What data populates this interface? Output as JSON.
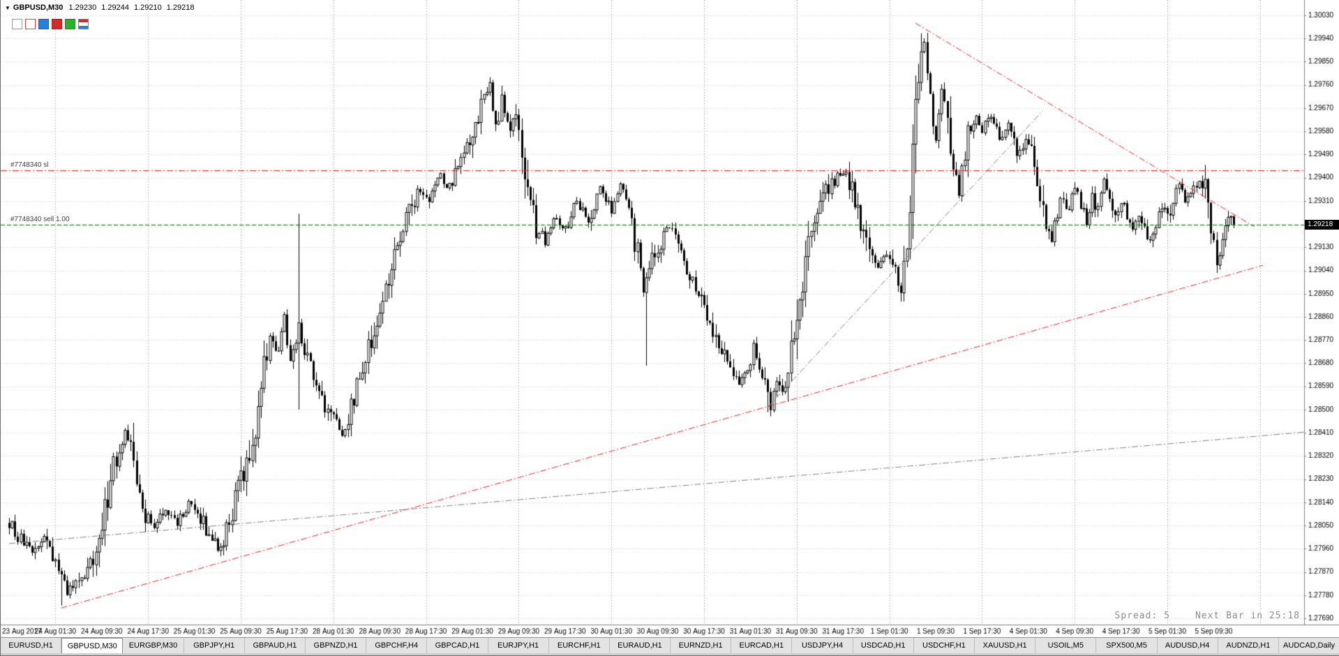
{
  "colors": {
    "background": "#ffffff",
    "candle": "#000000",
    "grid_h": "#d6d6d6",
    "grid_v": "#8f8f8f",
    "axis_divider": "#808080",
    "red_line": "#ff2020",
    "green_line": "#007a00",
    "gray_line": "#808080",
    "badge_bg": "#000000",
    "badge_text": "#ffffff",
    "overlay_text": "#8c8c8c"
  },
  "header": {
    "collapse_icon": "▼",
    "symbol_title": "GBPUSD,M30",
    "open": "1.29230",
    "high": "1.29244",
    "low": "1.29210",
    "close": "1.29218"
  },
  "toolbar": {
    "swatches": [
      {
        "name": "outline-blue-swatch",
        "type": "outline",
        "fill": "#ffffff",
        "border": "#58a6e8"
      },
      {
        "name": "outline-red-swatch",
        "type": "outline",
        "fill": "#ffffff",
        "border": "#d94444"
      },
      {
        "name": "blue-swatch",
        "type": "solid",
        "fill": "#2a7fde",
        "border": "#1b5fae"
      },
      {
        "name": "red-swatch",
        "type": "solid",
        "fill": "#d42a2a",
        "border": "#a61f1f"
      },
      {
        "name": "green-swatch",
        "type": "solid",
        "fill": "#2eaf2e",
        "border": "#1f8a1f"
      },
      {
        "name": "striped-flag-swatch",
        "type": "striped",
        "stripes": [
          "#d42a2a",
          "#ffffff",
          "#2a7fde"
        ],
        "border": "#888888"
      }
    ]
  },
  "chart_data": {
    "type": "candlestick",
    "symbol": "GBPUSD",
    "timeframe": "M30",
    "current_price": "1.29218",
    "price_axis": {
      "top_tick": 1.3003,
      "tick_step": 0.0009,
      "ticks": [
        "1.30030",
        "1.29940",
        "1.29850",
        "1.29760",
        "1.29670",
        "1.29580",
        "1.29490",
        "1.29400",
        "1.29310",
        "1.29220",
        "1.29130",
        "1.29040",
        "1.28950",
        "1.28860",
        "1.28770",
        "1.28680",
        "1.28590",
        "1.28500",
        "1.28410",
        "1.28320",
        "1.28230",
        "1.28140",
        "1.28050",
        "1.27960",
        "1.27870",
        "1.27780",
        "1.27690"
      ]
    },
    "time_axis": {
      "bars_per_label": 16,
      "labels": [
        "23 Aug 2017",
        "24 Aug 01:30",
        "24 Aug 09:30",
        "24 Aug 17:30",
        "25 Aug 01:30",
        "25 Aug 09:30",
        "25 Aug 17:30",
        "28 Aug 01:30",
        "28 Aug 09:30",
        "28 Aug 17:30",
        "29 Aug 01:30",
        "29 Aug 09:30",
        "29 Aug 17:30",
        "30 Aug 01:30",
        "30 Aug 09:30",
        "30 Aug 17:30",
        "31 Aug 01:30",
        "31 Aug 09:30",
        "31 Aug 17:30",
        "1 Sep 01:30",
        "1 Sep 09:30",
        "1 Sep 17:30",
        "4 Sep 01:30",
        "4 Sep 09:30",
        "4 Sep 17:30",
        "5 Sep 01:30",
        "5 Sep 09:30"
      ]
    },
    "bar_count": 424,
    "price_path_anchors": [
      [
        0,
        1.2806
      ],
      [
        4,
        1.2799
      ],
      [
        8,
        1.2794
      ],
      [
        12,
        1.2801
      ],
      [
        16,
        1.279
      ],
      [
        20,
        1.2779
      ],
      [
        24,
        1.2783
      ],
      [
        28,
        1.2789
      ],
      [
        31,
        1.2797
      ],
      [
        34,
        1.2818
      ],
      [
        37,
        1.2832
      ],
      [
        40,
        1.2842
      ],
      [
        43,
        1.283
      ],
      [
        46,
        1.2808
      ],
      [
        50,
        1.2806
      ],
      [
        54,
        1.2812
      ],
      [
        58,
        1.2806
      ],
      [
        62,
        1.2813
      ],
      [
        66,
        1.2808
      ],
      [
        70,
        1.28
      ],
      [
        73,
        1.2795
      ],
      [
        76,
        1.2806
      ],
      [
        80,
        1.2822
      ],
      [
        84,
        1.2836
      ],
      [
        87,
        1.2862
      ],
      [
        90,
        1.2877
      ],
      [
        93,
        1.2872
      ],
      [
        95,
        1.2886
      ],
      [
        97,
        1.2868
      ],
      [
        100,
        1.2882
      ],
      [
        102,
        1.2874
      ],
      [
        105,
        1.2862
      ],
      [
        108,
        1.2853
      ],
      [
        112,
        1.2846
      ],
      [
        115,
        1.2841
      ],
      [
        118,
        1.285
      ],
      [
        122,
        1.2866
      ],
      [
        126,
        1.288
      ],
      [
        130,
        1.2898
      ],
      [
        134,
        1.2912
      ],
      [
        138,
        1.2926
      ],
      [
        142,
        1.2936
      ],
      [
        145,
        1.293
      ],
      [
        148,
        1.2941
      ],
      [
        152,
        1.2936
      ],
      [
        156,
        1.2946
      ],
      [
        160,
        1.2956
      ],
      [
        163,
        1.2969
      ],
      [
        166,
        1.2976
      ],
      [
        168,
        1.2959
      ],
      [
        170,
        1.2971
      ],
      [
        173,
        1.2956
      ],
      [
        175,
        1.2964
      ],
      [
        177,
        1.295
      ],
      [
        179,
        1.2938
      ],
      [
        182,
        1.2921
      ],
      [
        185,
        1.2916
      ],
      [
        188,
        1.2926
      ],
      [
        192,
        1.292
      ],
      [
        196,
        1.2931
      ],
      [
        200,
        1.2923
      ],
      [
        204,
        1.2936
      ],
      [
        208,
        1.2928
      ],
      [
        211,
        1.2939
      ],
      [
        214,
        1.2926
      ],
      [
        217,
        1.2912
      ],
      [
        219,
        1.2898
      ],
      [
        221,
        1.2906
      ],
      [
        224,
        1.2913
      ],
      [
        228,
        1.2921
      ],
      [
        232,
        1.2911
      ],
      [
        236,
        1.2901
      ],
      [
        240,
        1.2891
      ],
      [
        244,
        1.2879
      ],
      [
        248,
        1.2871
      ],
      [
        252,
        1.2859
      ],
      [
        255,
        1.2863
      ],
      [
        257,
        1.2876
      ],
      [
        259,
        1.2868
      ],
      [
        261,
        1.2858
      ],
      [
        263,
        1.2852
      ],
      [
        265,
        1.2861
      ],
      [
        267,
        1.2854
      ],
      [
        269,
        1.2864
      ],
      [
        271,
        1.288
      ],
      [
        273,
        1.2896
      ],
      [
        275,
        1.2908
      ],
      [
        277,
        1.2917
      ],
      [
        280,
        1.2928
      ],
      [
        283,
        1.2937
      ],
      [
        286,
        1.2941
      ],
      [
        288,
        1.2943
      ],
      [
        291,
        1.2936
      ],
      [
        294,
        1.2924
      ],
      [
        297,
        1.2909
      ],
      [
        300,
        1.2904
      ],
      [
        303,
        1.2911
      ],
      [
        306,
        1.2903
      ],
      [
        308,
        1.2893
      ],
      [
        310,
        1.2914
      ],
      [
        312,
        1.295
      ],
      [
        314,
        1.2984
      ],
      [
        316,
        1.2991
      ],
      [
        318,
        1.2969
      ],
      [
        320,
        1.2956
      ],
      [
        322,
        1.2973
      ],
      [
        324,
        1.2961
      ],
      [
        326,
        1.2946
      ],
      [
        328,
        1.2932
      ],
      [
        330,
        1.2951
      ],
      [
        332,
        1.2958
      ],
      [
        334,
        1.2966
      ],
      [
        336,
        1.2958
      ],
      [
        339,
        1.2963
      ],
      [
        342,
        1.2956
      ],
      [
        345,
        1.296
      ],
      [
        348,
        1.295
      ],
      [
        351,
        1.2954
      ],
      [
        354,
        1.2946
      ],
      [
        356,
        1.2935
      ],
      [
        358,
        1.2922
      ],
      [
        360,
        1.2916
      ],
      [
        362,
        1.2926
      ],
      [
        364,
        1.2934
      ],
      [
        366,
        1.2928
      ],
      [
        368,
        1.2938
      ],
      [
        370,
        1.293
      ],
      [
        372,
        1.2922
      ],
      [
        374,
        1.2934
      ],
      [
        376,
        1.2928
      ],
      [
        378,
        1.2938
      ],
      [
        380,
        1.2932
      ],
      [
        382,
        1.2926
      ],
      [
        384,
        1.2932
      ],
      [
        386,
        1.2925
      ],
      [
        388,
        1.2919
      ],
      [
        390,
        1.2926
      ],
      [
        392,
        1.292
      ],
      [
        394,
        1.2914
      ],
      [
        396,
        1.2921
      ],
      [
        398,
        1.2927
      ],
      [
        400,
        1.2924
      ],
      [
        402,
        1.2932
      ],
      [
        404,
        1.2938
      ],
      [
        406,
        1.293
      ],
      [
        408,
        1.2934
      ],
      [
        411,
        1.294
      ],
      [
        413,
        1.2936
      ],
      [
        415,
        1.2918
      ],
      [
        417,
        1.2908
      ],
      [
        419,
        1.2915
      ],
      [
        421,
        1.2924
      ],
      [
        423,
        1.29218
      ]
    ],
    "spikes": [
      {
        "bar": 18,
        "low": 1.2774
      },
      {
        "bar": 100,
        "high": 1.2926,
        "low": 1.285
      },
      {
        "bar": 166,
        "high": 1.2979
      },
      {
        "bar": 220,
        "low": 1.2867
      },
      {
        "bar": 262,
        "low": 1.2849
      },
      {
        "bar": 315,
        "high": 1.2996
      },
      {
        "bar": 417,
        "low": 1.2903
      }
    ],
    "trendlines": [
      {
        "name": "descending-resistance",
        "color": "#ff2020",
        "from": {
          "bar": 313,
          "price": 1.3
        },
        "to": {
          "bar": 430,
          "price": 1.2921
        }
      },
      {
        "name": "ascending-support",
        "color": "#ff2020",
        "from": {
          "bar": 18,
          "price": 1.2773
        },
        "to": {
          "bar": 433,
          "price": 1.2906
        }
      },
      {
        "name": "steep-gray-trendline",
        "color": "#808080",
        "from": {
          "bar": 262,
          "price": 1.2851
        },
        "to": {
          "bar": 357,
          "price": 1.2966
        }
      },
      {
        "name": "shallow-gray-trendline",
        "color": "#808080",
        "from": {
          "bar": 0,
          "price": 1.2798
        },
        "to": {
          "bar": 455,
          "price": 1.2842
        }
      }
    ],
    "hlines": [
      {
        "label": "#7748340 sl",
        "price": 1.2943,
        "color": "#ff2020",
        "dash": "dashdot"
      },
      {
        "label": "#7748340 sell 1.00",
        "price": 1.29218,
        "color": "#007a00",
        "dash": "dash"
      }
    ],
    "overlay": {
      "spread_label": "Spread: 5",
      "next_bar_label": "Next Bar in 25:18"
    }
  },
  "tabs": {
    "items": [
      {
        "label": "EURUSD,H1",
        "active": false
      },
      {
        "label": "GBPUSD,M30",
        "active": true
      },
      {
        "label": "EURGBP,M30",
        "active": false
      },
      {
        "label": "GBPJPY,H1",
        "active": false
      },
      {
        "label": "GBPAUD,H1",
        "active": false
      },
      {
        "label": "GBPNZD,H1",
        "active": false
      },
      {
        "label": "GBPCHF,H4",
        "active": false
      },
      {
        "label": "GBPCAD,H1",
        "active": false
      },
      {
        "label": "EURJPY,H1",
        "active": false
      },
      {
        "label": "EURCHF,H1",
        "active": false
      },
      {
        "label": "EURAUD,H1",
        "active": false
      },
      {
        "label": "EURNZD,H1",
        "active": false
      },
      {
        "label": "EURCAD,H1",
        "active": false
      },
      {
        "label": "USDJPY,H4",
        "active": false
      },
      {
        "label": "USDCAD,H1",
        "active": false
      },
      {
        "label": "USDCHF,H1",
        "active": false
      },
      {
        "label": "XAUUSD,H1",
        "active": false
      },
      {
        "label": "USOIL,M5",
        "active": false
      },
      {
        "label": "SPX500,M5",
        "active": false
      },
      {
        "label": "AUDUSD,H4",
        "active": false
      },
      {
        "label": "AUDNZD,H1",
        "active": false
      },
      {
        "label": "AUDCAD,Daily",
        "active": false
      }
    ]
  }
}
